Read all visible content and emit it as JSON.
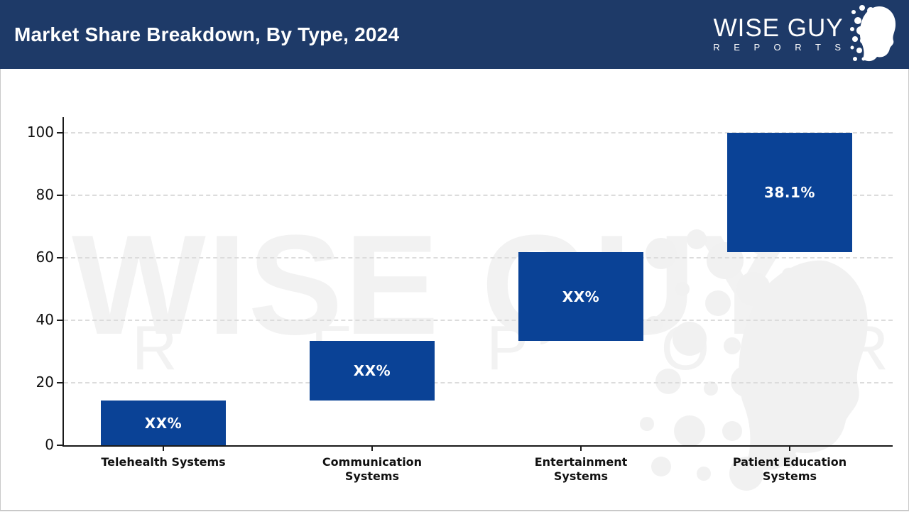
{
  "header": {
    "title": "Market Share Breakdown, By Type, 2024",
    "logo": {
      "brand_line1": "WISE GUY",
      "brand_line2": "R E P O R T S"
    }
  },
  "watermark": {
    "line1": "WISE GUY",
    "line2": "R E P O R T S"
  },
  "colors": {
    "header_bg": "#1e3a68",
    "bar": "#0a4296",
    "grid": "#dcdcdc",
    "axis": "#1a1a1a",
    "watermark": "#f2f2f2",
    "bar_label": "#ffffff"
  },
  "chart_data": {
    "type": "bar",
    "variant": "waterfall",
    "title": "Market Share Breakdown, By Type, 2024",
    "xlabel": "",
    "ylabel": "",
    "ylim": [
      0,
      100
    ],
    "yticks": [
      0,
      20,
      40,
      60,
      80,
      100
    ],
    "grid": "horizontal-dashed",
    "legend": "none",
    "bar_color": "#0a4296",
    "categories": [
      "Telehealth Systems",
      "Communication Systems",
      "Entertainment Systems",
      "Patient Education Systems"
    ],
    "values": [
      14.3,
      19.0,
      28.6,
      38.1
    ],
    "bars": [
      {
        "category_lines": [
          "Telehealth Systems"
        ],
        "start": 0,
        "end": 14.3,
        "label": "XX%"
      },
      {
        "category_lines": [
          "Communication",
          "Systems"
        ],
        "start": 14.3,
        "end": 33.3,
        "label": "XX%"
      },
      {
        "category_lines": [
          "Entertainment",
          "Systems"
        ],
        "start": 33.3,
        "end": 61.9,
        "label": "XX%"
      },
      {
        "category_lines": [
          "Patient Education",
          "Systems"
        ],
        "start": 61.9,
        "end": 100,
        "label": "38.1%"
      }
    ]
  }
}
